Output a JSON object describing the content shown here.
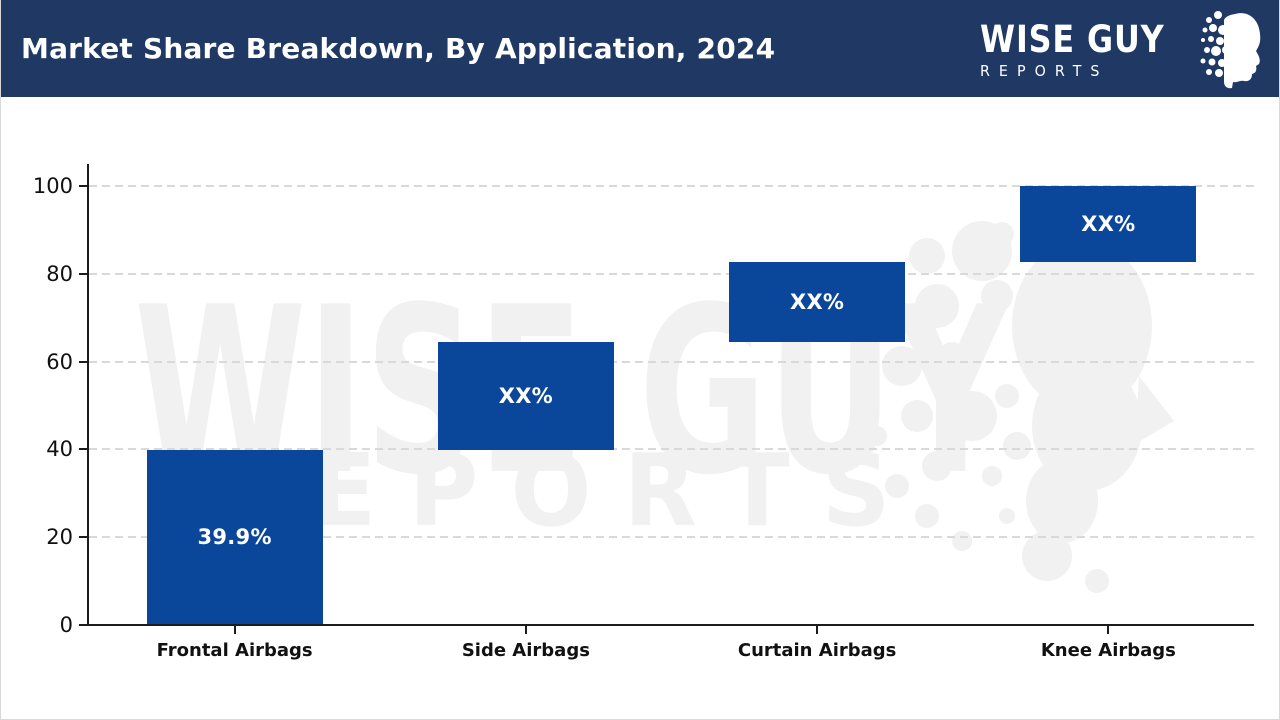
{
  "header": {
    "title": "Market Share Breakdown, By Application, 2024",
    "logo": {
      "brand_line1": "WISE GUY",
      "brand_line2": "REPORTS"
    }
  },
  "watermark": {
    "line1": "WISE GUY",
    "line2": "REPORTS"
  },
  "chart_data": {
    "type": "bar",
    "variant": "floating-waterfall",
    "title": "Market Share Breakdown, By Application, 2024",
    "categories": [
      "Frontal Airbags",
      "Side Airbags",
      "Curtain Airbags",
      "Knee Airbags"
    ],
    "series": [
      {
        "name": "Market share by application",
        "segments": [
          {
            "category": "Frontal Airbags",
            "start": 0,
            "end": 39.9,
            "label": "39.9%"
          },
          {
            "category": "Side Airbags",
            "start": 39.9,
            "end": 64.4,
            "label": "XX%"
          },
          {
            "category": "Curtain Airbags",
            "start": 64.4,
            "end": 82.7,
            "label": "XX%"
          },
          {
            "category": "Knee Airbags",
            "start": 82.7,
            "end": 100,
            "label": "XX%"
          }
        ]
      }
    ],
    "xlabel": "",
    "ylabel": "",
    "ylim": [
      0,
      105
    ],
    "yticks": [
      0,
      20,
      40,
      60,
      80,
      100
    ],
    "grid": "horizontal-dashed",
    "legend": "none",
    "bar_color": "#0a4699",
    "bar_label_color": "#ffffff"
  },
  "colors": {
    "header_bg": "#203864",
    "header_text": "#ffffff",
    "bar": "#0a4699",
    "grid": "#d9d9d9",
    "axis": "#1c1c1c",
    "watermark": "#f1f1f1",
    "page_border": "#d9d9d9"
  }
}
